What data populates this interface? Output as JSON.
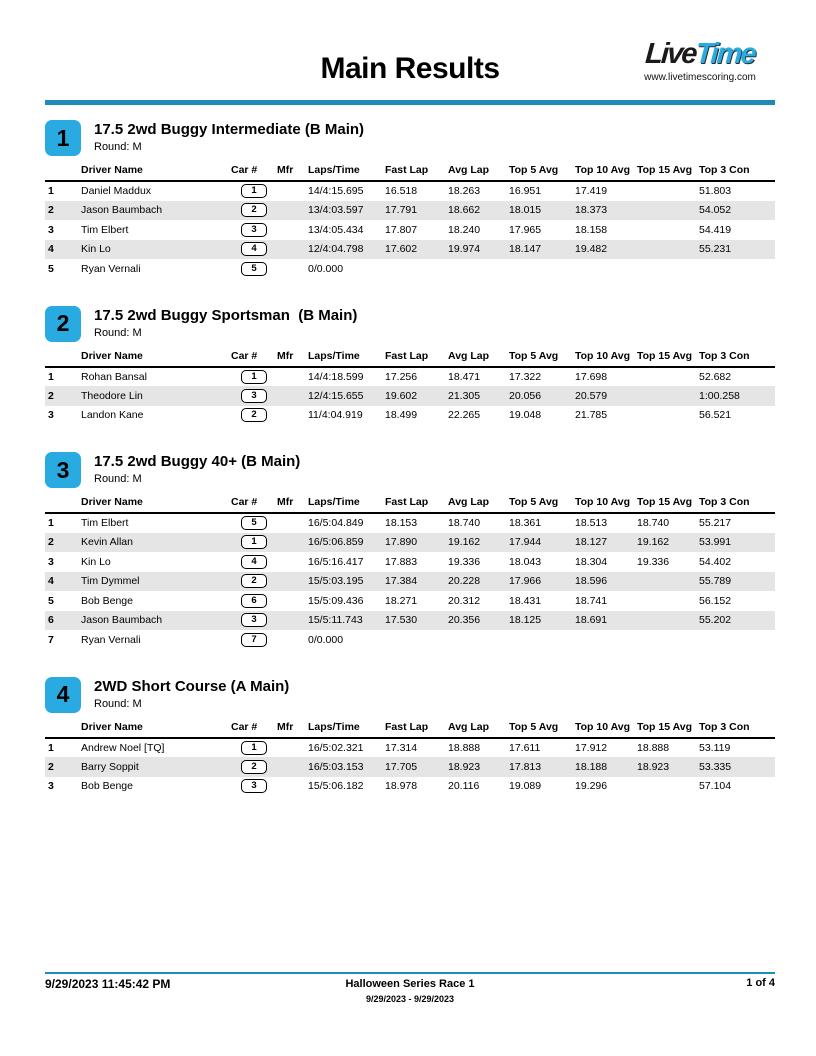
{
  "page": {
    "title": "Main Results",
    "logo": {
      "part1": "Live",
      "part2": "Time",
      "tagline": "www.livetimescoring.com"
    }
  },
  "columns": [
    "Driver Name",
    "Car #",
    "Mfr",
    "Laps/Time",
    "Fast Lap",
    "Avg Lap",
    "Top 5 Avg",
    "Top 10 Avg",
    "Top 15 Avg",
    "Top 3 Con"
  ],
  "sections": [
    {
      "number": "1",
      "title": "17.5 2wd Buggy Intermediate (B Main)",
      "round": "Round: M",
      "rows": [
        {
          "pos": "1",
          "driver": "Daniel Maddux",
          "car": "1",
          "mfr": "",
          "laps_time": "14/4:15.695",
          "fast_lap": "16.518",
          "avg_lap": "18.263",
          "top5_avg": "16.951",
          "top10_avg": "17.419",
          "top15_avg": "",
          "top3_con": "51.803"
        },
        {
          "pos": "2",
          "driver": "Jason Baumbach",
          "car": "2",
          "mfr": "",
          "laps_time": "13/4:03.597",
          "fast_lap": "17.791",
          "avg_lap": "18.662",
          "top5_avg": "18.015",
          "top10_avg": "18.373",
          "top15_avg": "",
          "top3_con": "54.052"
        },
        {
          "pos": "3",
          "driver": "Tim Elbert",
          "car": "3",
          "mfr": "",
          "laps_time": "13/4:05.434",
          "fast_lap": "17.807",
          "avg_lap": "18.240",
          "top5_avg": "17.965",
          "top10_avg": "18.158",
          "top15_avg": "",
          "top3_con": "54.419"
        },
        {
          "pos": "4",
          "driver": "Kin Lo",
          "car": "4",
          "mfr": "",
          "laps_time": "12/4:04.798",
          "fast_lap": "17.602",
          "avg_lap": "19.974",
          "top5_avg": "18.147",
          "top10_avg": "19.482",
          "top15_avg": "",
          "top3_con": "55.231"
        },
        {
          "pos": "5",
          "driver": "Ryan Vernali",
          "car": "5",
          "mfr": "",
          "laps_time": "0/0.000",
          "fast_lap": "",
          "avg_lap": "",
          "top5_avg": "",
          "top10_avg": "",
          "top15_avg": "",
          "top3_con": ""
        }
      ]
    },
    {
      "number": "2",
      "title": "17.5 2wd Buggy Sportsman  (B Main)",
      "round": "Round: M",
      "rows": [
        {
          "pos": "1",
          "driver": "Rohan Bansal",
          "car": "1",
          "mfr": "",
          "laps_time": "14/4:18.599",
          "fast_lap": "17.256",
          "avg_lap": "18.471",
          "top5_avg": "17.322",
          "top10_avg": "17.698",
          "top15_avg": "",
          "top3_con": "52.682"
        },
        {
          "pos": "2",
          "driver": "Theodore Lin",
          "car": "3",
          "mfr": "",
          "laps_time": "12/4:15.655",
          "fast_lap": "19.602",
          "avg_lap": "21.305",
          "top5_avg": "20.056",
          "top10_avg": "20.579",
          "top15_avg": "",
          "top3_con": "1:00.258"
        },
        {
          "pos": "3",
          "driver": "Landon Kane",
          "car": "2",
          "mfr": "",
          "laps_time": "11/4:04.919",
          "fast_lap": "18.499",
          "avg_lap": "22.265",
          "top5_avg": "19.048",
          "top10_avg": "21.785",
          "top15_avg": "",
          "top3_con": "56.521"
        }
      ]
    },
    {
      "number": "3",
      "title": "17.5 2wd Buggy 40+ (B Main)",
      "round": "Round: M",
      "rows": [
        {
          "pos": "1",
          "driver": "Tim Elbert",
          "car": "5",
          "mfr": "",
          "laps_time": "16/5:04.849",
          "fast_lap": "18.153",
          "avg_lap": "18.740",
          "top5_avg": "18.361",
          "top10_avg": "18.513",
          "top15_avg": "18.740",
          "top3_con": "55.217"
        },
        {
          "pos": "2",
          "driver": "Kevin Allan",
          "car": "1",
          "mfr": "",
          "laps_time": "16/5:06.859",
          "fast_lap": "17.890",
          "avg_lap": "19.162",
          "top5_avg": "17.944",
          "top10_avg": "18.127",
          "top15_avg": "19.162",
          "top3_con": "53.991"
        },
        {
          "pos": "3",
          "driver": "Kin Lo",
          "car": "4",
          "mfr": "",
          "laps_time": "16/5:16.417",
          "fast_lap": "17.883",
          "avg_lap": "19.336",
          "top5_avg": "18.043",
          "top10_avg": "18.304",
          "top15_avg": "19.336",
          "top3_con": "54.402"
        },
        {
          "pos": "4",
          "driver": "Tim Dymmel",
          "car": "2",
          "mfr": "",
          "laps_time": "15/5:03.195",
          "fast_lap": "17.384",
          "avg_lap": "20.228",
          "top5_avg": "17.966",
          "top10_avg": "18.596",
          "top15_avg": "",
          "top3_con": "55.789"
        },
        {
          "pos": "5",
          "driver": "Bob Benge",
          "car": "6",
          "mfr": "",
          "laps_time": "15/5:09.436",
          "fast_lap": "18.271",
          "avg_lap": "20.312",
          "top5_avg": "18.431",
          "top10_avg": "18.741",
          "top15_avg": "",
          "top3_con": "56.152"
        },
        {
          "pos": "6",
          "driver": "Jason Baumbach",
          "car": "3",
          "mfr": "",
          "laps_time": "15/5:11.743",
          "fast_lap": "17.530",
          "avg_lap": "20.356",
          "top5_avg": "18.125",
          "top10_avg": "18.691",
          "top15_avg": "",
          "top3_con": "55.202"
        },
        {
          "pos": "7",
          "driver": "Ryan Vernali",
          "car": "7",
          "mfr": "",
          "laps_time": "0/0.000",
          "fast_lap": "",
          "avg_lap": "",
          "top5_avg": "",
          "top10_avg": "",
          "top15_avg": "",
          "top3_con": ""
        }
      ]
    },
    {
      "number": "4",
      "title": "2WD Short Course (A Main)",
      "round": "Round: M",
      "rows": [
        {
          "pos": "1",
          "driver": "Andrew Noel [TQ]",
          "car": "1",
          "mfr": "",
          "laps_time": "16/5:02.321",
          "fast_lap": "17.314",
          "avg_lap": "18.888",
          "top5_avg": "17.611",
          "top10_avg": "17.912",
          "top15_avg": "18.888",
          "top3_con": "53.119"
        },
        {
          "pos": "2",
          "driver": "Barry Soppit",
          "car": "2",
          "mfr": "",
          "laps_time": "16/5:03.153",
          "fast_lap": "17.705",
          "avg_lap": "18.923",
          "top5_avg": "17.813",
          "top10_avg": "18.188",
          "top15_avg": "18.923",
          "top3_con": "53.335"
        },
        {
          "pos": "3",
          "driver": "Bob Benge",
          "car": "3",
          "mfr": "",
          "laps_time": "15/5:06.182",
          "fast_lap": "18.978",
          "avg_lap": "20.116",
          "top5_avg": "19.089",
          "top10_avg": "19.296",
          "top15_avg": "",
          "top3_con": "57.104"
        }
      ]
    }
  ],
  "footer": {
    "datetime": "9/29/2023 11:45:42 PM",
    "event": "Halloween Series Race 1",
    "dates": "9/29/2023 - 9/29/2023",
    "page": "1 of 4"
  },
  "colors": {
    "badge_blue": "#29ABE2",
    "rule_blue": "#1E8BB8",
    "row_alt_gray": "#E5E5E5"
  }
}
